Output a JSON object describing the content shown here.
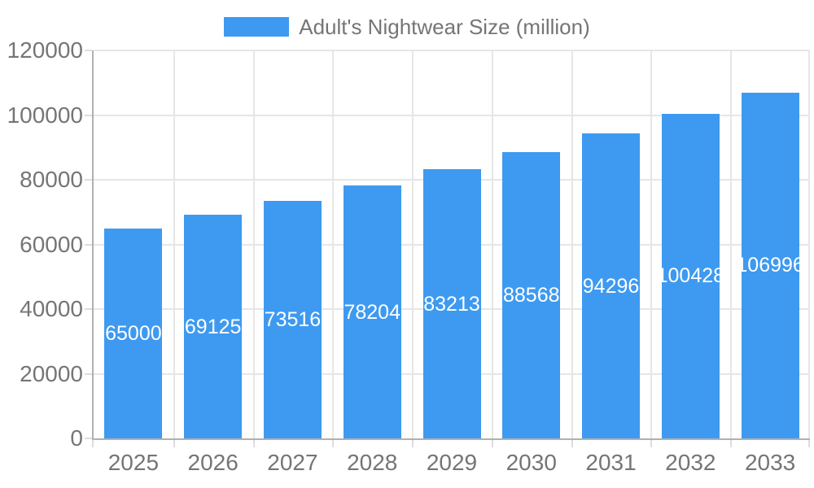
{
  "legend": {
    "label": "Adult's Nightwear Size (million)"
  },
  "colors": {
    "bar": "#3E9AF0",
    "bar_label": "#FFFFFF",
    "grid": "#E6E6E6",
    "axis": "#B0B0B0",
    "tick": "#DDDDDD",
    "text": "#757575",
    "background": "#FFFFFF"
  },
  "chart_data": {
    "type": "bar",
    "title": "Adult's Nightwear Size (million)",
    "series_name": "Adult's Nightwear Size (million)",
    "categories": [
      "2025",
      "2026",
      "2027",
      "2028",
      "2029",
      "2030",
      "2031",
      "2032",
      "2033"
    ],
    "values": [
      65000,
      69125,
      73516,
      78204,
      83213,
      88568,
      94296,
      100428,
      106996
    ],
    "value_labels": [
      "65000",
      "69125",
      "73516",
      "78204",
      "83213",
      "88568",
      "94296",
      "100428",
      "106996"
    ],
    "xlabel": "",
    "ylabel": "",
    "ylim": [
      0,
      120000
    ],
    "y_ticks": [
      0,
      20000,
      40000,
      60000,
      80000,
      100000,
      120000
    ],
    "y_tick_labels": [
      "0",
      "20000",
      "40000",
      "60000",
      "80000",
      "100000",
      "120000"
    ],
    "grid": true,
    "grid_vertical": true,
    "legend_position": "top-center",
    "bar_value_labels": "inside-center"
  }
}
